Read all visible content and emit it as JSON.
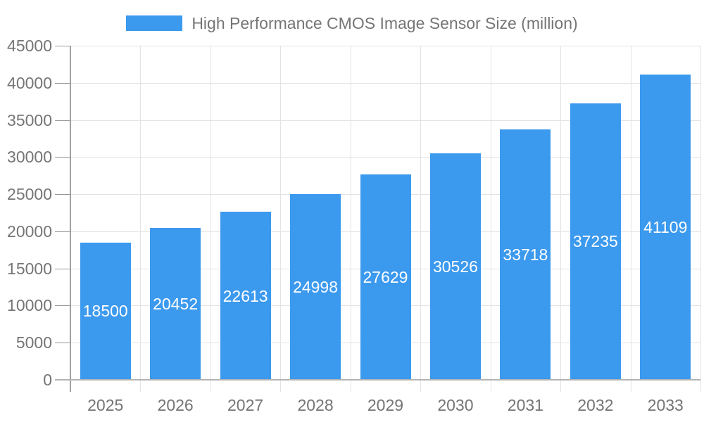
{
  "legend": {
    "label": "High Performance CMOS Image Sensor Size (million)"
  },
  "chart_data": {
    "type": "bar",
    "title": "High Performance CMOS Image Sensor Size (million)",
    "categories": [
      "2025",
      "2026",
      "2027",
      "2028",
      "2029",
      "2030",
      "2031",
      "2032",
      "2033"
    ],
    "values": [
      18500,
      20452,
      22613,
      24998,
      27629,
      30526,
      33718,
      37235,
      41109
    ],
    "xlabel": "",
    "ylabel": "",
    "ylim": [
      0,
      45000
    ],
    "ytick_step": 5000,
    "ytick_labels": [
      "0",
      "5000",
      "10000",
      "15000",
      "20000",
      "25000",
      "30000",
      "35000",
      "40000",
      "45000"
    ],
    "grid": true,
    "legend_position": "top-center",
    "value_labels": "inside-center"
  },
  "colors": {
    "bar": "#3B99EE",
    "grid": "#E3E3E3",
    "baseline": "#B3B3B3",
    "axis_line": "#A0A0A0",
    "tick": "#999999",
    "axis_text": "#757575",
    "bar_label_text": "#FFFFFF",
    "background": "#FFFFFF"
  }
}
